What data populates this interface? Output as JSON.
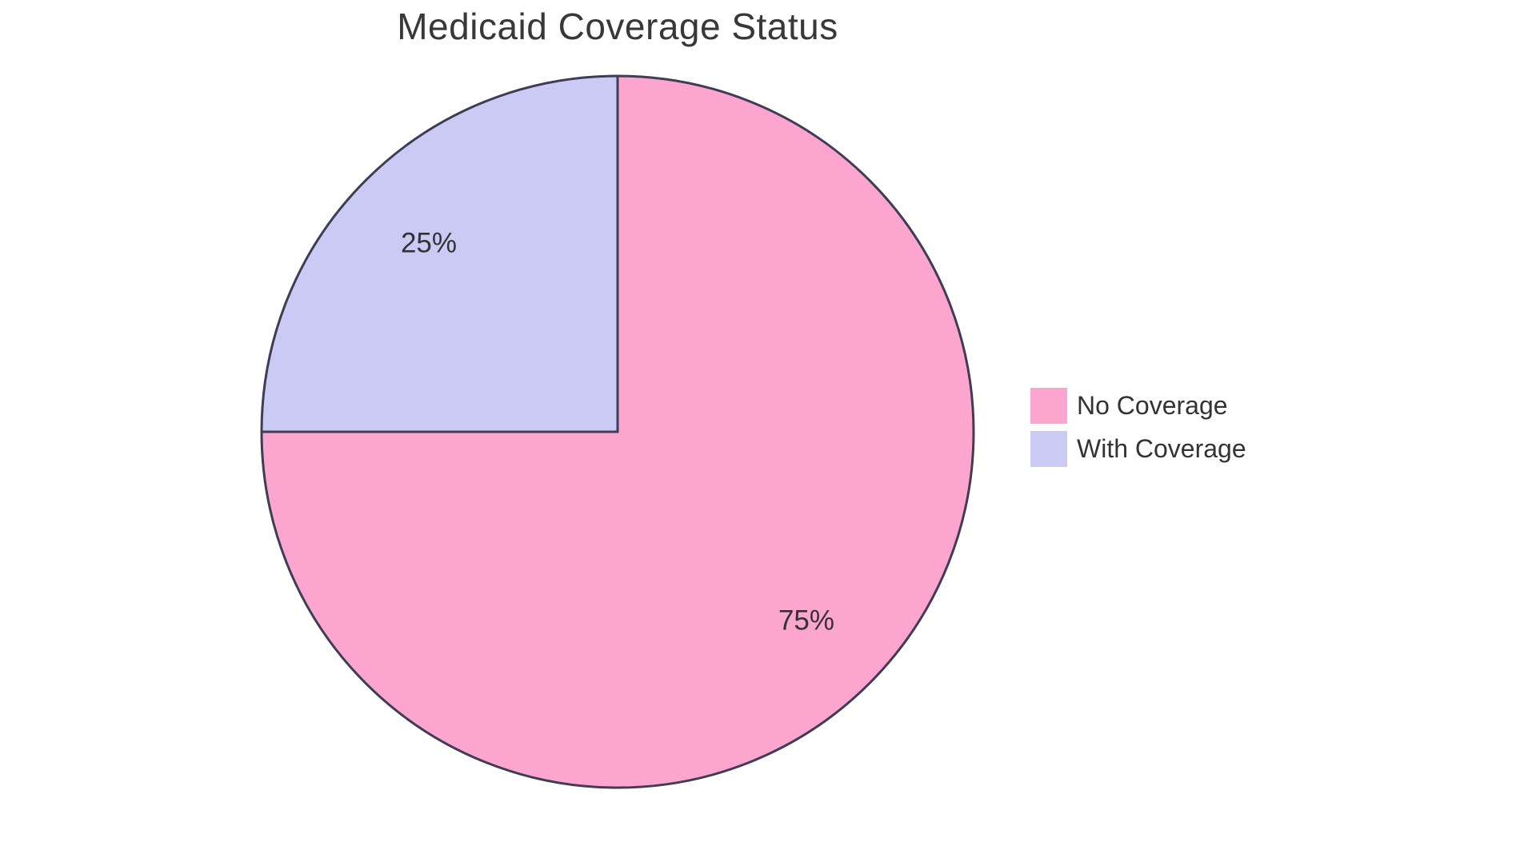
{
  "chart_data": {
    "type": "pie",
    "title": "Medicaid Coverage Status",
    "labels": [
      "No Coverage",
      "With Coverage"
    ],
    "values": [
      75,
      25
    ],
    "percent_labels": [
      "75%",
      "25%"
    ],
    "colors": [
      "#FBA5CF",
      "#CACAF5"
    ],
    "stroke_color": "#3F3D56",
    "title_color": "#383838",
    "label_text_color": "#333333",
    "start_angle": "top",
    "direction": "clockwise",
    "legend_position": "right",
    "labels_inside": true
  }
}
